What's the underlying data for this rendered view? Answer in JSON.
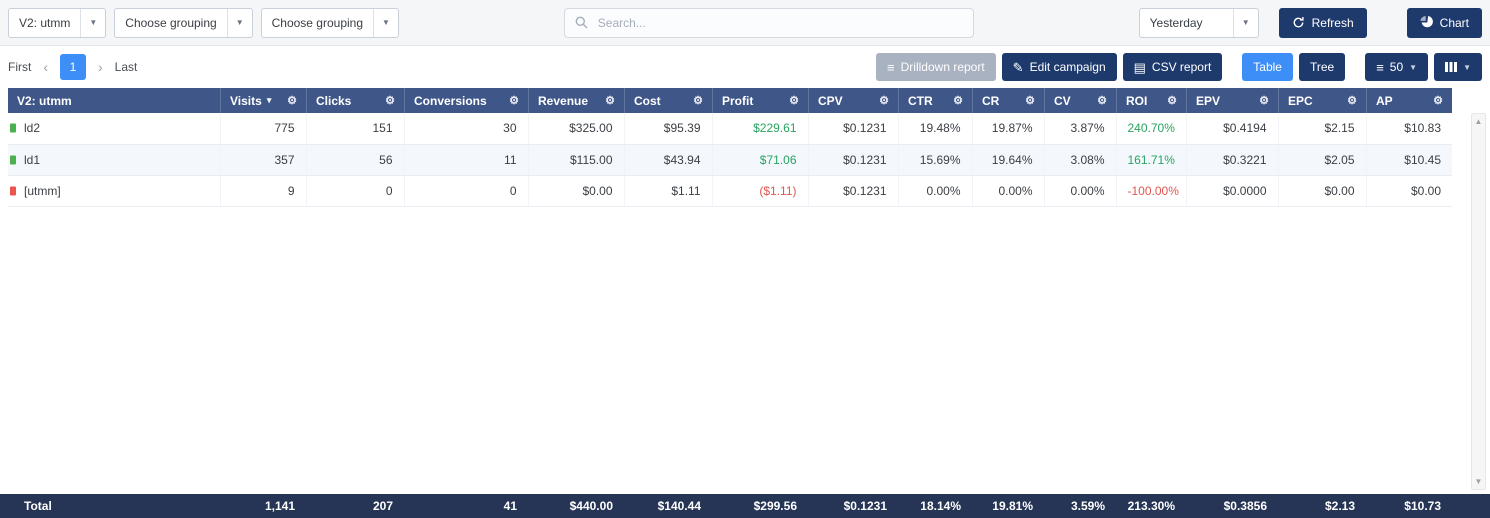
{
  "toolbar": {
    "campaign_select": "V2: utmm",
    "grouping_select_1": "Choose grouping",
    "grouping_select_2": "Choose grouping",
    "search_placeholder": "Search...",
    "date_select": "Yesterday",
    "refresh_label": "Refresh",
    "chart_label": "Chart"
  },
  "pagination": {
    "first_label": "First",
    "current_page": "1",
    "last_label": "Last"
  },
  "actionbar": {
    "drilldown_label": "Drilldown report",
    "edit_label": "Edit campaign",
    "csv_label": "CSV report",
    "table_label": "Table",
    "tree_label": "Tree",
    "rows_per_page": "50"
  },
  "table": {
    "columns": [
      "V2: utmm",
      "Visits",
      "Clicks",
      "Conversions",
      "Revenue",
      "Cost",
      "Profit",
      "CPV",
      "CTR",
      "CR",
      "CV",
      "ROI",
      "EPV",
      "EPC",
      "AP"
    ],
    "sorted_column": "Visits",
    "rows": [
      {
        "name": "ld2",
        "trend": "up",
        "values": [
          "775",
          "151",
          "30",
          "$325.00",
          "$95.39",
          "$229.61",
          "$0.1231",
          "19.48%",
          "19.87%",
          "3.87%",
          "240.70%",
          "$0.4194",
          "$2.15",
          "$10.83"
        ]
      },
      {
        "name": "ld1",
        "trend": "up",
        "values": [
          "357",
          "56",
          "11",
          "$115.00",
          "$43.94",
          "$71.06",
          "$0.1231",
          "15.69%",
          "19.64%",
          "3.08%",
          "161.71%",
          "$0.3221",
          "$2.05",
          "$10.45"
        ]
      },
      {
        "name": "[utmm]",
        "trend": "down",
        "values": [
          "9",
          "0",
          "0",
          "$0.00",
          "$1.11",
          "($1.11)",
          "$0.1231",
          "0.00%",
          "0.00%",
          "0.00%",
          "-100.00%",
          "$0.0000",
          "$0.00",
          "$0.00"
        ]
      }
    ],
    "total": {
      "label": "Total",
      "values": [
        "1,141",
        "207",
        "41",
        "$440.00",
        "$140.44",
        "$299.56",
        "$0.1231",
        "18.14%",
        "19.81%",
        "3.59%",
        "213.30%",
        "$0.3856",
        "$2.13",
        "$10.73"
      ]
    }
  },
  "colors": {
    "positive": "#27a35f",
    "negative": "#e25650",
    "total_positive": "#2ecc71",
    "accent_blue": "#3e8ef7",
    "navy": "#1e3a6d",
    "header_bg": "#3f5689",
    "total_bg": "#263555"
  }
}
